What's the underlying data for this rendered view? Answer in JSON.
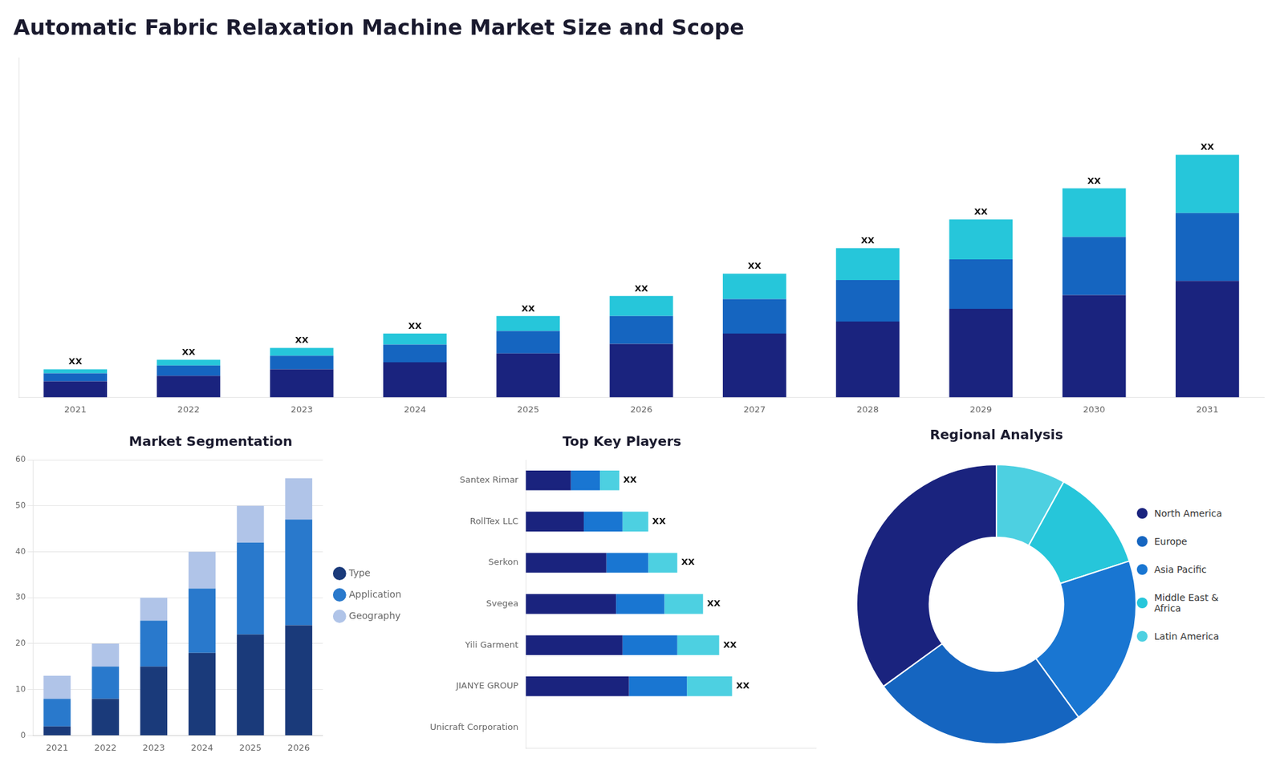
{
  "chart_data": [
    {
      "type": "bar",
      "title": "Automatic Fabric Relaxation Machine Market Size and Scope",
      "stacked": true,
      "categories": [
        "2021",
        "2022",
        "2023",
        "2024",
        "2025",
        "2026",
        "2027",
        "2028",
        "2029",
        "2030",
        "2031"
      ],
      "series": [
        {
          "color": "#1a237e",
          "values": [
            1.0,
            1.35,
            1.75,
            2.2,
            2.75,
            3.35,
            4.0,
            4.75,
            5.55,
            6.4,
            7.3
          ]
        },
        {
          "color": "#1565c0",
          "values": [
            0.5,
            0.65,
            0.85,
            1.1,
            1.4,
            1.75,
            2.15,
            2.6,
            3.1,
            3.65,
            4.25
          ]
        },
        {
          "color": "#26c6da",
          "values": [
            0.25,
            0.35,
            0.5,
            0.7,
            0.95,
            1.25,
            1.6,
            2.0,
            2.5,
            3.05,
            3.65
          ],
          "value_labels": [
            "XX",
            "XX",
            "XX",
            "XX",
            "XX",
            "XX",
            "XX",
            "XX",
            "XX",
            "XX",
            "XX"
          ]
        }
      ],
      "ylim": [
        0,
        21.28
      ],
      "grid": false,
      "tick_labels": "x"
    },
    {
      "type": "bar",
      "title": "Market Segmentation",
      "stacked": true,
      "categories": [
        "2021",
        "2022",
        "2023",
        "2024",
        "2025",
        "2026"
      ],
      "series": [
        {
          "name": "Type",
          "color": "#1a3a7a",
          "values": [
            2,
            8,
            15,
            18,
            22,
            24
          ]
        },
        {
          "name": "Application",
          "color": "#2979cc",
          "values": [
            6,
            7,
            10,
            14,
            20,
            23
          ]
        },
        {
          "name": "Geography",
          "color": "#b0c4e8",
          "values": [
            5,
            5,
            5,
            8,
            8,
            9
          ]
        }
      ],
      "ylim": [
        0,
        60
      ],
      "yticks": [
        0,
        10,
        20,
        30,
        40,
        50,
        60
      ],
      "grid": true,
      "legend": "right"
    },
    {
      "type": "bar",
      "orientation": "horizontal",
      "title": "Top Key Players",
      "stacked": true,
      "categories": [
        "Unicraft Corporation",
        "JIANYE GROUP",
        "Yili Garment",
        "Svegea",
        "Serkon",
        "RollTex LLC",
        "Santex Rimar"
      ],
      "series": [
        {
          "color": "#1a237e",
          "values": [
            0,
            3.2,
            3.0,
            2.8,
            2.5,
            1.8,
            1.4
          ]
        },
        {
          "color": "#1976d2",
          "values": [
            0,
            1.8,
            1.7,
            1.5,
            1.3,
            1.2,
            0.9
          ]
        },
        {
          "color": "#4dd0e1",
          "values": [
            0,
            1.4,
            1.3,
            1.2,
            0.9,
            0.8,
            0.6
          ],
          "value_labels": [
            null,
            "XX",
            "XX",
            "XX",
            "XX",
            "XX",
            "XX"
          ]
        }
      ],
      "xlim": [
        0,
        9
      ],
      "grid": false,
      "tick_labels": "y"
    },
    {
      "type": "doughnut",
      "title": "Regional Analysis",
      "categories": [
        "Latin America",
        "Middle East &\nAfrica",
        "Asia Pacific",
        "Europe",
        "North America"
      ],
      "values": [
        8,
        12,
        20,
        25,
        35
      ],
      "colors": [
        "#4dd0e1",
        "#26c6da",
        "#1976d2",
        "#1565c0",
        "#1a237e"
      ],
      "legend": "right"
    }
  ]
}
